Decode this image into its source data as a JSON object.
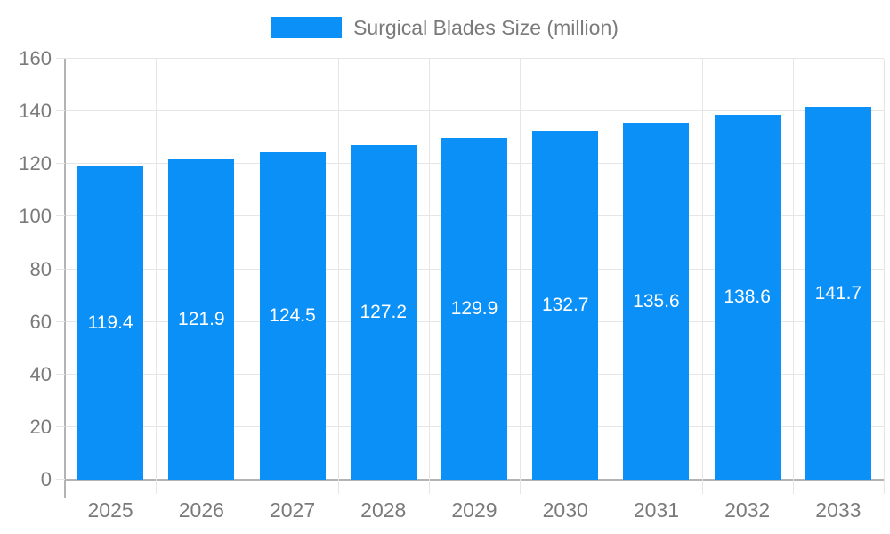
{
  "legend": {
    "label": "Surgical Blades Size (million)"
  },
  "chart_data": {
    "type": "bar",
    "title": "Surgical Blades Size (million)",
    "categories": [
      "2025",
      "2026",
      "2027",
      "2028",
      "2029",
      "2030",
      "2031",
      "2032",
      "2033"
    ],
    "values": [
      119.4,
      121.9,
      124.5,
      127.2,
      129.9,
      132.7,
      135.6,
      138.6,
      141.7
    ],
    "value_labels": [
      "119.4",
      "121.9",
      "124.5",
      "127.2",
      "129.9",
      "132.7",
      "135.6",
      "138.6",
      "141.7"
    ],
    "xlabel": "",
    "ylabel": "",
    "ylim": [
      0,
      160
    ],
    "ytick_step": 20,
    "ytick_labels": [
      "0",
      "20",
      "40",
      "60",
      "80",
      "100",
      "120",
      "140",
      "160"
    ],
    "grid": true,
    "legend_position": "top",
    "value_label_position": "inside-center"
  },
  "colors": {
    "bar": "#0a90f7",
    "grid": "#e6e6e6",
    "axis": "#b3b3b3",
    "text": "#7a7a7a",
    "value_label": "#ffffff",
    "background": "#ffffff"
  }
}
